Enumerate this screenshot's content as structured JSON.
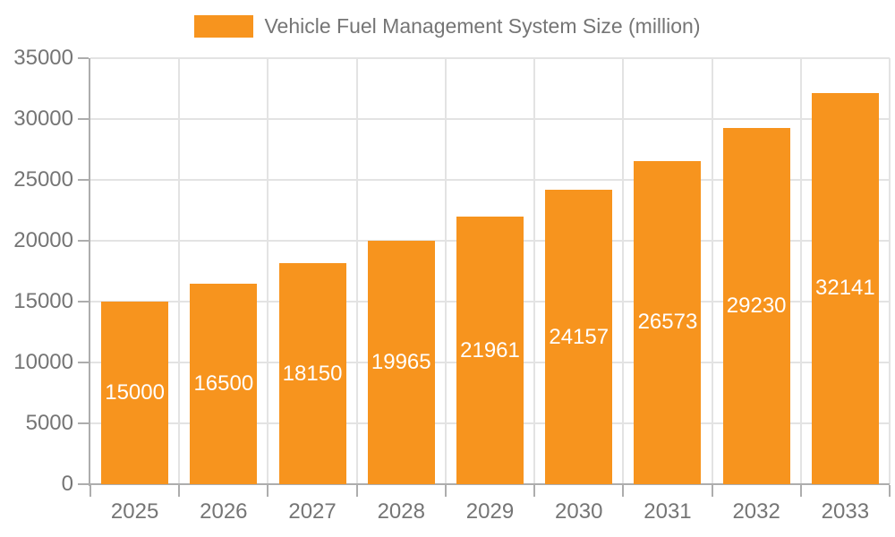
{
  "chart_data": {
    "type": "bar",
    "title": "Vehicle Fuel Management System Size (million)",
    "legend_label": "Vehicle Fuel Management System Size (million)",
    "legend_position": "top-center",
    "categories": [
      "2025",
      "2026",
      "2027",
      "2028",
      "2029",
      "2030",
      "2031",
      "2032",
      "2033"
    ],
    "series": [
      {
        "name": "Vehicle Fuel Management System Size (million)",
        "values": [
          15000,
          16500,
          18150,
          19965,
          21961,
          24157,
          26573,
          29230,
          32141
        ]
      }
    ],
    "xlabel": "",
    "ylabel": "",
    "ylim": [
      0,
      35000
    ],
    "yticks": [
      0,
      5000,
      10000,
      15000,
      20000,
      25000,
      30000,
      35000
    ],
    "grid": true,
    "bar_label_position": "inside-center"
  },
  "colors": {
    "bar": "#f7941e",
    "value_label": "#ffffff",
    "axis_label": "#757575",
    "legend_text": "#757575",
    "grid_line": "#e3e3e3",
    "axis_line": "#adadad",
    "background": "#ffffff"
  }
}
